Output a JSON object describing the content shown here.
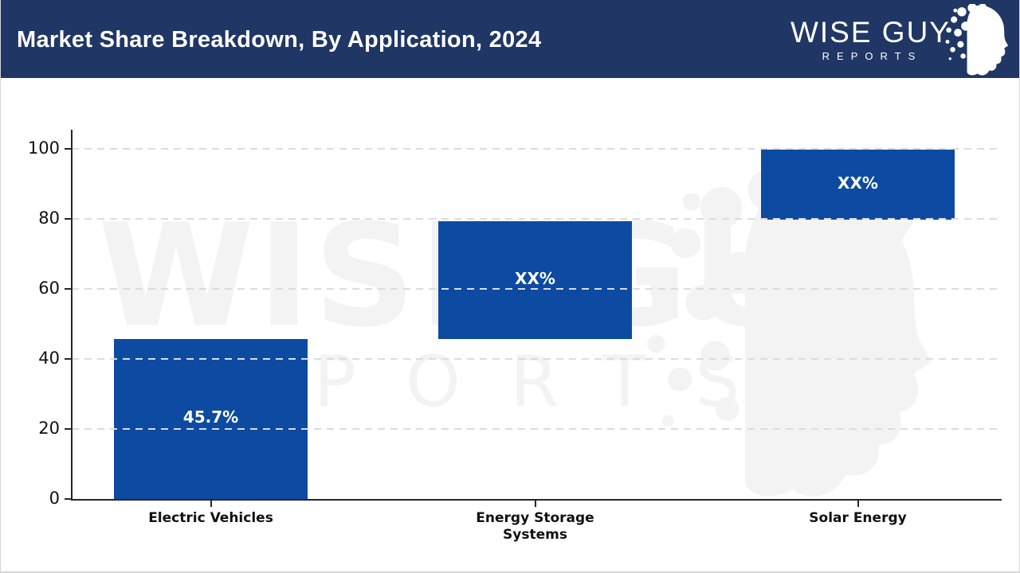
{
  "header": {
    "title": "Market Share Breakdown, By Application, 2024",
    "logo": {
      "name_line": "WISE GUY",
      "sub_line": "REPORTS"
    }
  },
  "watermark": {
    "name_line": "WISE GUY",
    "sub_line": "REPORTS"
  },
  "colors": {
    "header_bg": "#203664",
    "header_text": "#ffffff",
    "bar": "#0d4aa1",
    "bar_label": "#ffffff",
    "grid": "#dcdcdc",
    "axis": "#262626",
    "tick_label": "#111111",
    "watermark": "#f3f3f3",
    "page_border": "#d6d6d6"
  },
  "chart_data": {
    "type": "bar",
    "subtype": "waterfall",
    "title": "Market Share Breakdown, By Application, 2024",
    "categories": [
      "Electric Vehicles",
      "Energy Storage\nSystems",
      "Solar Energy"
    ],
    "bars": [
      {
        "category": "Electric Vehicles",
        "start": 0,
        "end": 45.7,
        "label": "45.7%"
      },
      {
        "category": "Energy Storage Systems",
        "start": 45.7,
        "end": 79.2,
        "label": "XX%"
      },
      {
        "category": "Solar Energy",
        "start": 79.6,
        "end": 99.6,
        "label": "XX%"
      }
    ],
    "xlabel": "",
    "ylabel": "",
    "ylim": [
      0,
      100
    ],
    "yticks": [
      0,
      20,
      40,
      60,
      80,
      100
    ],
    "grid": "horizontal-dashed",
    "legend": "none"
  }
}
